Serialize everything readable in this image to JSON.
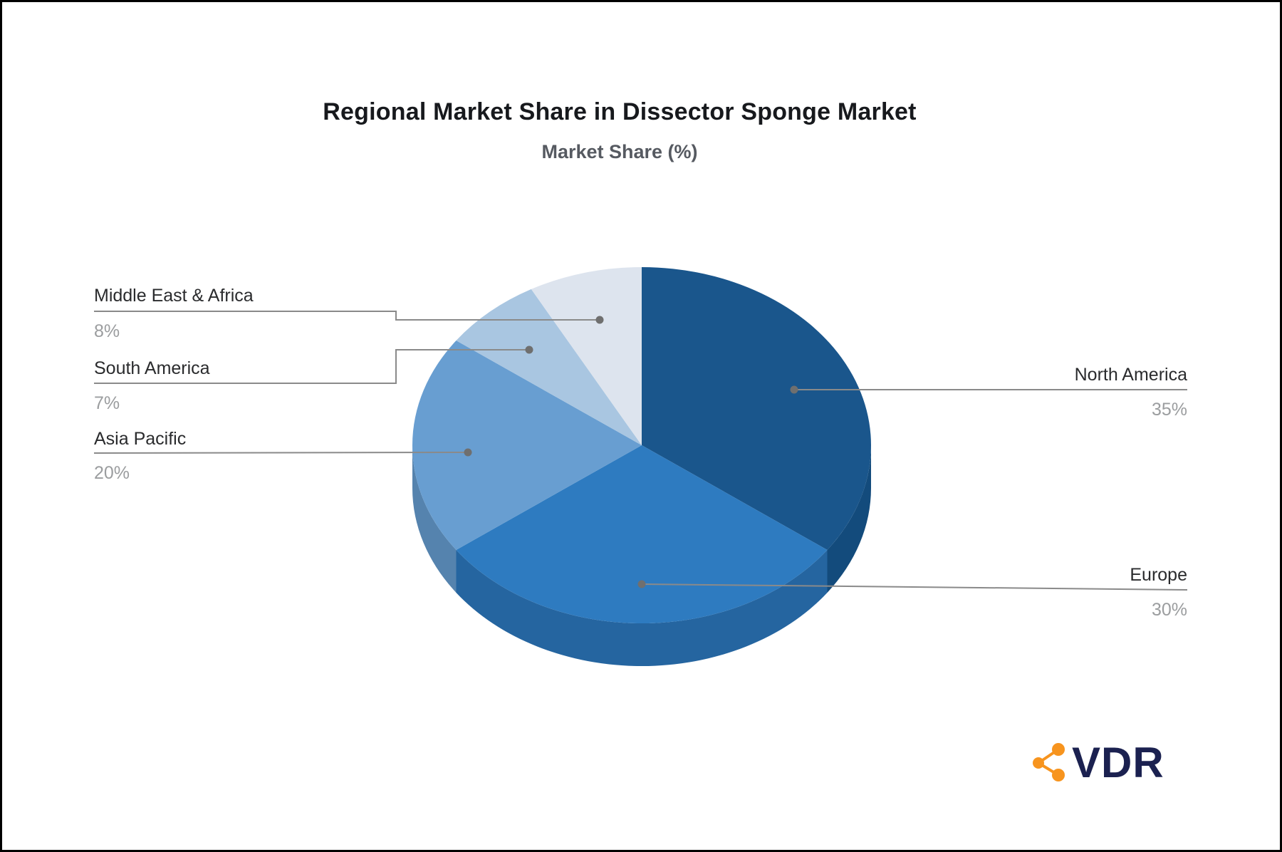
{
  "page": {
    "title": "Regional Market Share in Dissector Sponge Market",
    "subtitle": "Market Share (%)"
  },
  "chart_data": {
    "type": "pie",
    "title": "Regional Market Share in Dissector Sponge Market",
    "subtitle": "Market Share (%)",
    "unit": "%",
    "style": "3d-pie",
    "start_angle_deg": 0,
    "direction": "clockwise",
    "labels_position": "callouts",
    "categories": [
      "North America",
      "Europe",
      "Asia Pacific",
      "South America",
      "Middle East & Africa"
    ],
    "values": [
      35,
      30,
      20,
      7,
      8
    ],
    "slices": [
      {
        "label": "North America",
        "value": 35,
        "value_label": "35%",
        "color": "#1A568C",
        "side_color": "#134B7C"
      },
      {
        "label": "Europe",
        "value": 30,
        "value_label": "30%",
        "color": "#2E7BC0",
        "side_color": "#2565A0"
      },
      {
        "label": "Asia Pacific",
        "value": 20,
        "value_label": "20%",
        "color": "#689ED1",
        "side_color": "#5583AE"
      },
      {
        "label": "South America",
        "value": 7,
        "value_label": "7%",
        "color": "#A9C6E1",
        "side_color": "#8FA9C2"
      },
      {
        "label": "Middle East & Africa",
        "value": 8,
        "value_label": "8%",
        "color": "#DDE4EE",
        "side_color": "#BCC5D2"
      }
    ],
    "leader_line_color": "#8a8a8a",
    "leader_dot_color": "#6f6f6f"
  },
  "logo": {
    "text": "VDR",
    "icon": "share-icon",
    "icon_color": "#F7941E",
    "text_color": "#1B2150"
  }
}
